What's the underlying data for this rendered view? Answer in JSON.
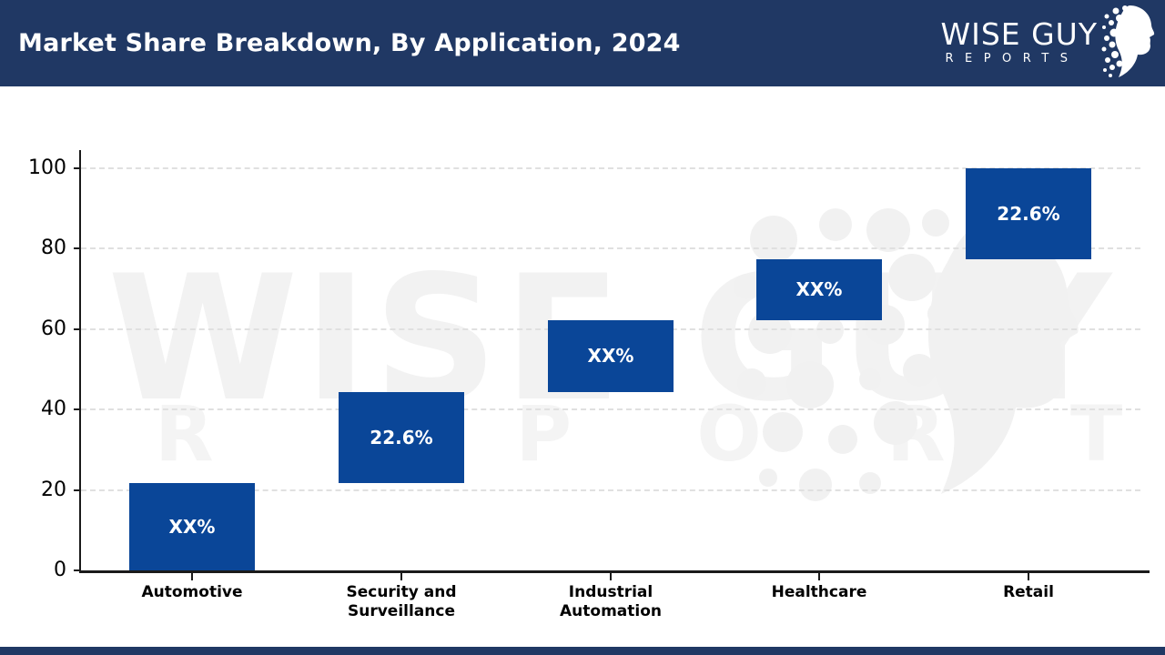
{
  "header": {
    "title": "Market Share Breakdown, By Application, 2024",
    "bg_color": "#203864",
    "logo": {
      "wordmark": "WISE GUY",
      "subtext": "REPORTS"
    }
  },
  "watermark": {
    "line1": "WISE GUY",
    "line2": "R E P O R T S"
  },
  "chart_data": {
    "type": "bar",
    "subtype": "floating-waterfall",
    "title": "Market Share Breakdown, By Application, 2024",
    "xlabel": "",
    "ylabel": "",
    "categories": [
      "Automotive",
      "Security and\nSurveillance",
      "Industrial\nAutomation",
      "Healthcare",
      "Retail"
    ],
    "segments": [
      {
        "category": "Automotive",
        "start": 0,
        "end": 21.8,
        "label": "XX%"
      },
      {
        "category": "Security and Surveillance",
        "start": 21.8,
        "end": 44.4,
        "label": "22.6%"
      },
      {
        "category": "Industrial Automation",
        "start": 44.4,
        "end": 62.2,
        "label": "XX%"
      },
      {
        "category": "Healthcare",
        "start": 62.2,
        "end": 77.4,
        "label": "XX%"
      },
      {
        "category": "Retail",
        "start": 77.4,
        "end": 100,
        "label": "22.6%"
      }
    ],
    "y_ticks": [
      0,
      20,
      40,
      60,
      80,
      100
    ],
    "ylim": [
      0,
      104
    ],
    "grid": "horizontal-dashed",
    "legend": "none",
    "bar_color": "#0a4698",
    "bar_label_color": "#ffffff",
    "axis_color": "#1a1a1a",
    "gridline_color": "#e0e0e0"
  }
}
